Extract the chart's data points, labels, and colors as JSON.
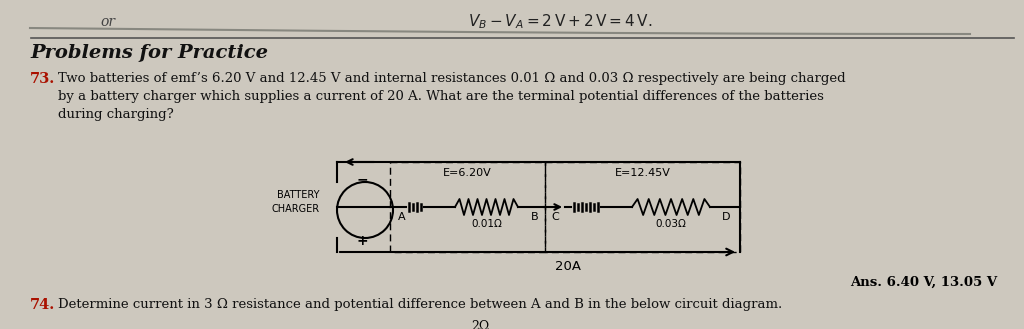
{
  "bg_color": "#cdc8be",
  "top_text": "or",
  "section_title": "Problems for Practice",
  "problem_73_num": "73.",
  "problem_74_num": "74.",
  "ans_label": "Ans.",
  "ans_values": "6.40 V, 13.05 V",
  "circuit_label_e1": "E=6.20V",
  "circuit_label_e2": "E=12.45V",
  "circuit_label_r1": "0.01Ω",
  "circuit_label_r2": "0.03Ω",
  "circuit_label_current": "20A",
  "circuit_label_battery": "BATTERY\nCHARGER",
  "node_A": "A",
  "node_B": "B",
  "node_C": "C",
  "node_D": "D",
  "minus": "−",
  "plus": "+"
}
